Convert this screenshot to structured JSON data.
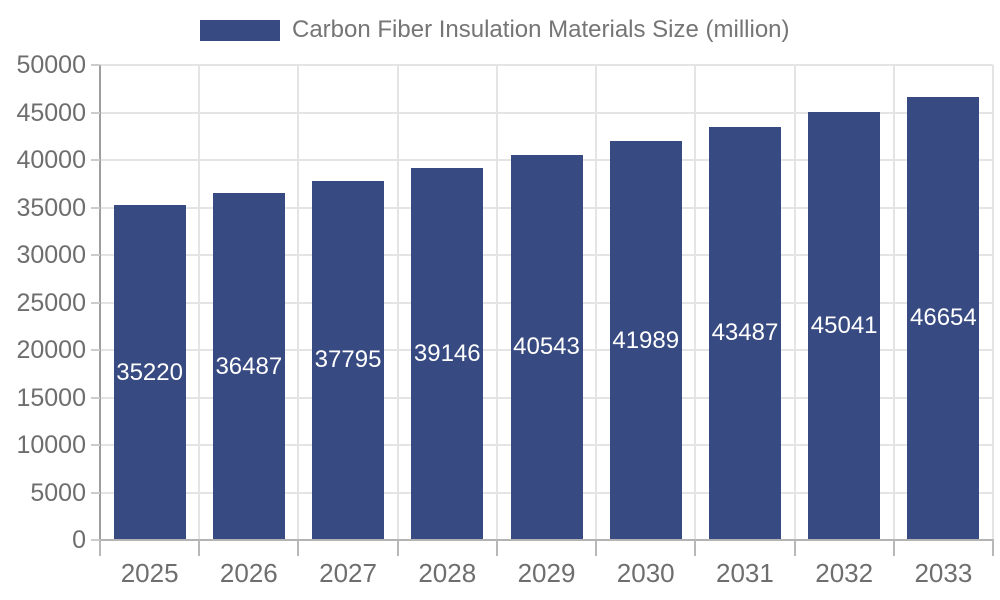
{
  "legend": {
    "label": "Carbon Fiber Insulation Materials Size (million)",
    "swatch_color": "#384a82"
  },
  "chart_data": {
    "type": "bar",
    "title": "Carbon Fiber Insulation Materials Size (million)",
    "categories": [
      "2025",
      "2026",
      "2027",
      "2028",
      "2029",
      "2030",
      "2031",
      "2032",
      "2033"
    ],
    "values": [
      35220,
      36487,
      37795,
      39146,
      40543,
      41989,
      43487,
      45041,
      46654
    ],
    "series": [
      {
        "name": "Carbon Fiber Insulation Materials Size (million)",
        "values": [
          35220,
          36487,
          37795,
          39146,
          40543,
          41989,
          43487,
          45041,
          46654
        ]
      }
    ],
    "xlabel": "",
    "ylabel": "",
    "ylim": [
      0,
      50000
    ],
    "ytick_step": 5000,
    "yticks": [
      0,
      5000,
      10000,
      15000,
      20000,
      25000,
      30000,
      35000,
      40000,
      45000,
      50000
    ],
    "grid": true,
    "legend_position": "top",
    "bar_color": "#384a82",
    "bar_label_color": "#ffffff",
    "axis_color": "#9e9e9e",
    "grid_color": "#e4e4e4",
    "tick_label_color": "#6e6e6e"
  }
}
